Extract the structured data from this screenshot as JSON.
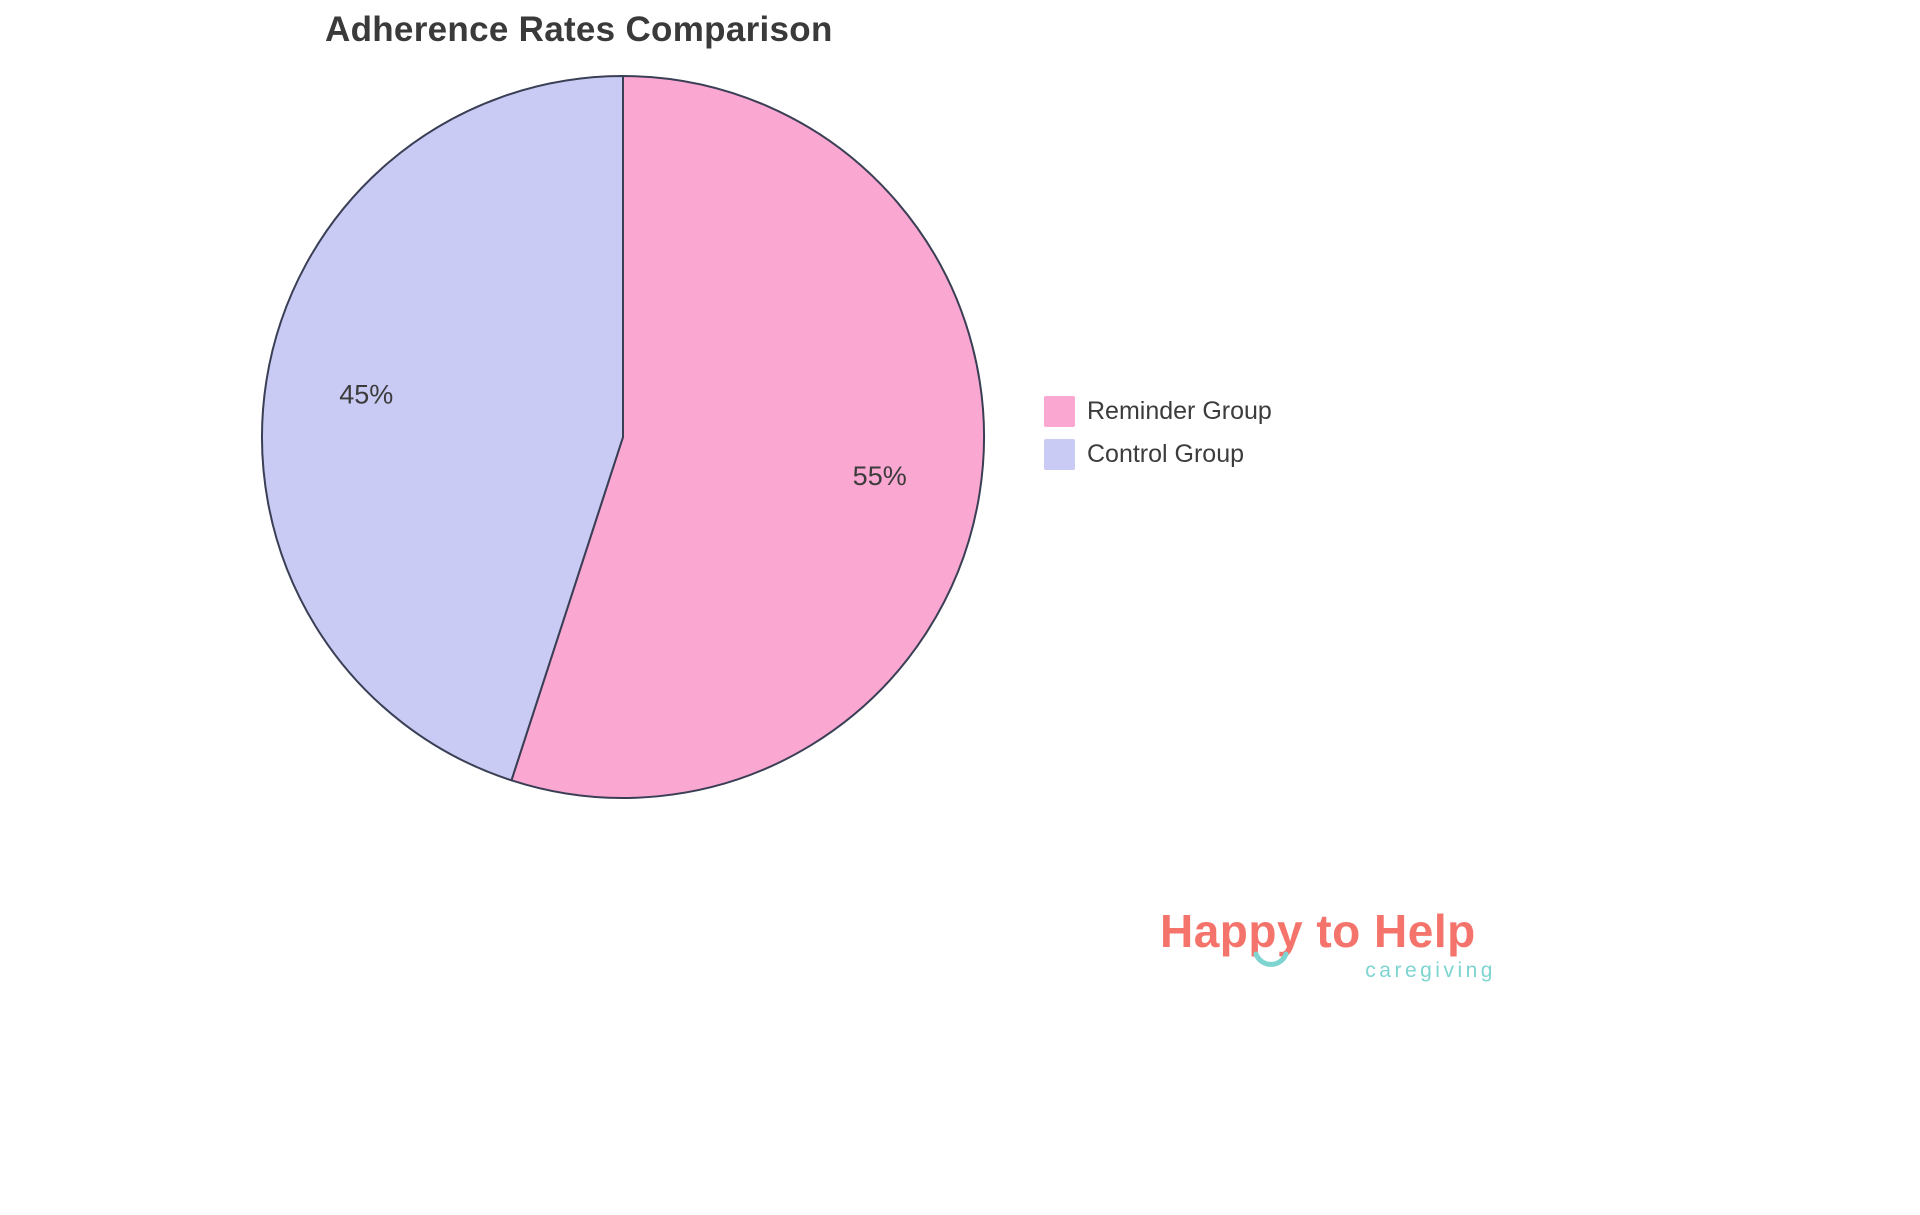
{
  "chart_data": {
    "type": "pie",
    "title": "Adherence Rates Comparison",
    "slices": [
      {
        "label": "Reminder Group",
        "value": 55,
        "display": "55%",
        "color": "#FAA7D2"
      },
      {
        "label": "Control Group",
        "value": 45,
        "display": "45%",
        "color": "#C9CBF4"
      }
    ],
    "start_angle": "top",
    "direction": "clockwise",
    "stroke_color": "#3A3F55",
    "label_color": "#3C3C3C",
    "label_radius_fraction": 0.72,
    "legend_position": "right"
  },
  "legend": {
    "items": [
      {
        "label": "Reminder Group",
        "color": "#FAA7D2"
      },
      {
        "label": "Control Group",
        "color": "#C9CBF4"
      }
    ]
  },
  "logo": {
    "primary": "Happy to Help",
    "secondary": "caregiving",
    "primary_color": "#F4746C",
    "secondary_color": "#7DD4D0"
  }
}
